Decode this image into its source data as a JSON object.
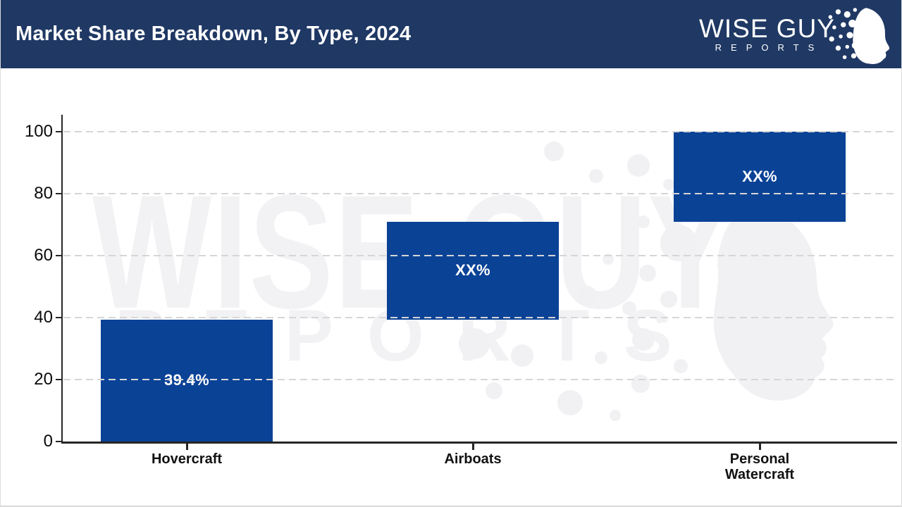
{
  "header": {
    "title": "Market Share Breakdown, By Type, 2024",
    "logo_line1": "WISE GUY",
    "logo_line2": "REPORTS"
  },
  "watermark": {
    "line1": "WISE GUY",
    "line2": "REPORTS"
  },
  "colors": {
    "header_bg": "#1f3864",
    "bar": "#0a4296",
    "bar_label": "#ffffff",
    "grid": "#d6d6d6",
    "axis": "#262626",
    "watermark": "#f2f2f4"
  },
  "chart_data": {
    "type": "bar",
    "subtype": "waterfall",
    "title": "Market Share Breakdown, By Type, 2024",
    "categories": [
      "Hovercraft",
      "Airboats",
      "Personal Watercraft"
    ],
    "segments": [
      {
        "category": "Hovercraft",
        "start": 0,
        "end": 39.4,
        "label": "39.4%"
      },
      {
        "category": "Airboats",
        "start": 39.4,
        "end": 70.9,
        "label": "XX%"
      },
      {
        "category": "Personal Watercraft",
        "start": 70.9,
        "end": 100,
        "label": "XX%"
      }
    ],
    "y_ticks": [
      0,
      20,
      40,
      60,
      80,
      100
    ],
    "ylim": [
      0,
      100
    ],
    "grid": "horizontal-dashed",
    "legend": "none"
  }
}
